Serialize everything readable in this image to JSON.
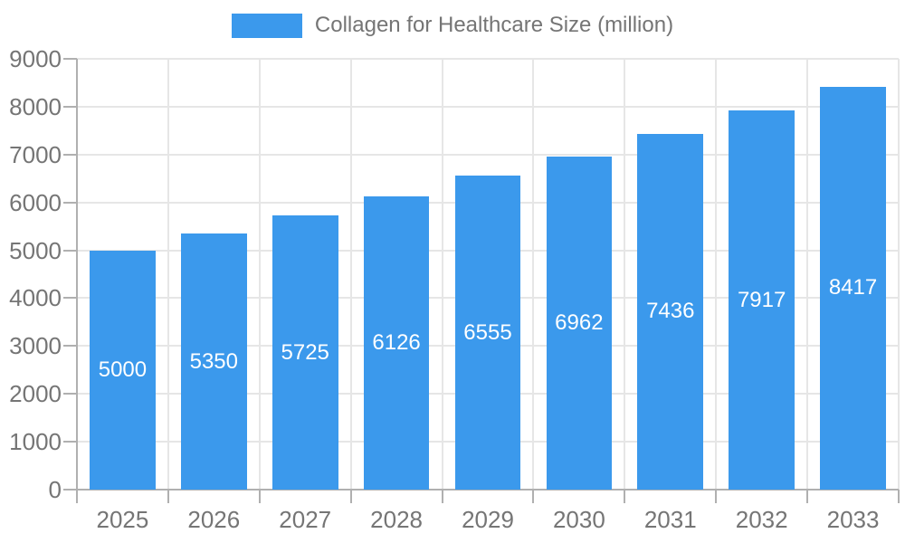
{
  "chart": {
    "colors": {
      "bar": "#3B99EC",
      "grid": "#E6E6E6",
      "axis": "#B0B0B0",
      "label_text": "#757575",
      "value_text": "#FFFFFF",
      "background": "#FFFFFF"
    }
  },
  "chart_data": {
    "type": "bar",
    "title": "Collagen for Healthcare Size (million)",
    "legend": [
      "Collagen for Healthcare Size (million)"
    ],
    "legend_position": "top",
    "categories": [
      "2025",
      "2026",
      "2027",
      "2028",
      "2029",
      "2030",
      "2031",
      "2032",
      "2033"
    ],
    "values": [
      5000,
      5350,
      5725,
      6126,
      6555,
      6962,
      7436,
      7917,
      8417
    ],
    "value_labels_position": "inside-center",
    "xlabel": "",
    "ylabel": "",
    "ylim": [
      0,
      9000
    ],
    "ytick_step": 1000,
    "yticks": [
      0,
      1000,
      2000,
      3000,
      4000,
      5000,
      6000,
      7000,
      8000,
      9000
    ],
    "grid": "horizontal-and-vertical"
  }
}
